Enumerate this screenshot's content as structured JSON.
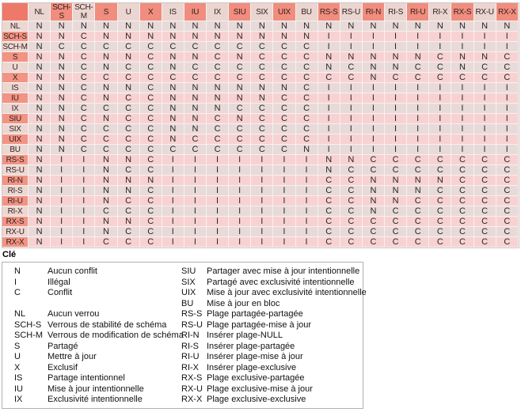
{
  "colors": {
    "corner": "#ef7968",
    "header_dark": "#f08d7e",
    "header_light": "#ead5d1",
    "row_header_dark": "#f29384",
    "row_header_light": "#ecd7d3",
    "cell_pink": "#f8d2d2",
    "cell_gray": "#e9dada",
    "grid_line": "#f7f0ee",
    "table_border": "#cfc5c2",
    "key_border": "#b4b0ae"
  },
  "matrix": {
    "corner_label": "",
    "columns": [
      "NL",
      "SCH-S",
      "SCH-M",
      "S",
      "U",
      "X",
      "IS",
      "IU",
      "IX",
      "SIU",
      "SIX",
      "UIX",
      "BU",
      "RS-S",
      "RS-U",
      "RI-N",
      "RI-S",
      "RI-U",
      "RI-X",
      "RX-S",
      "RX-U",
      "RX-X"
    ],
    "rows": [
      {
        "label": "NL",
        "values": [
          "N",
          "N",
          "N",
          "N",
          "N",
          "N",
          "N",
          "N",
          "N",
          "N",
          "N",
          "N",
          "N",
          "N",
          "N",
          "N",
          "N",
          "N",
          "N",
          "N",
          "N",
          "N"
        ]
      },
      {
        "label": "SCH-S",
        "values": [
          "N",
          "N",
          "C",
          "N",
          "N",
          "N",
          "N",
          "N",
          "N",
          "N",
          "N",
          "N",
          "N",
          "I",
          "I",
          "I",
          "I",
          "I",
          "I",
          "I",
          "I",
          "I"
        ]
      },
      {
        "label": "SCH-M",
        "values": [
          "N",
          "C",
          "C",
          "C",
          "C",
          "C",
          "C",
          "C",
          "C",
          "C",
          "C",
          "C",
          "C",
          "I",
          "I",
          "I",
          "I",
          "I",
          "I",
          "I",
          "I",
          "I"
        ]
      },
      {
        "label": "S",
        "values": [
          "N",
          "N",
          "C",
          "N",
          "N",
          "C",
          "N",
          "N",
          "C",
          "N",
          "C",
          "C",
          "C",
          "N",
          "N",
          "N",
          "N",
          "N",
          "C",
          "N",
          "N",
          "C"
        ]
      },
      {
        "label": "U",
        "values": [
          "N",
          "N",
          "C",
          "N",
          "C",
          "C",
          "N",
          "C",
          "C",
          "C",
          "C",
          "C",
          "C",
          "N",
          "C",
          "N",
          "N",
          "C",
          "C",
          "N",
          "C",
          "C"
        ]
      },
      {
        "label": "X",
        "values": [
          "N",
          "N",
          "C",
          "C",
          "C",
          "C",
          "C",
          "C",
          "C",
          "C",
          "C",
          "C",
          "C",
          "C",
          "C",
          "N",
          "C",
          "C",
          "C",
          "C",
          "C",
          "C"
        ]
      },
      {
        "label": "IS",
        "values": [
          "N",
          "N",
          "C",
          "N",
          "N",
          "C",
          "N",
          "N",
          "N",
          "N",
          "N",
          "N",
          "C",
          "I",
          "I",
          "I",
          "I",
          "I",
          "I",
          "I",
          "I",
          "I"
        ]
      },
      {
        "label": "IU",
        "values": [
          "N",
          "N",
          "C",
          "N",
          "C",
          "C",
          "N",
          "N",
          "N",
          "N",
          "N",
          "C",
          "C",
          "I",
          "I",
          "I",
          "I",
          "I",
          "I",
          "I",
          "I",
          "I"
        ]
      },
      {
        "label": "IX",
        "values": [
          "N",
          "N",
          "C",
          "C",
          "C",
          "C",
          "N",
          "N",
          "N",
          "C",
          "C",
          "C",
          "C",
          "I",
          "I",
          "I",
          "I",
          "I",
          "I",
          "I",
          "I",
          "I"
        ]
      },
      {
        "label": "SIU",
        "values": [
          "N",
          "N",
          "C",
          "N",
          "C",
          "C",
          "N",
          "N",
          "C",
          "N",
          "C",
          "C",
          "C",
          "I",
          "I",
          "I",
          "I",
          "I",
          "I",
          "I",
          "I",
          "I"
        ]
      },
      {
        "label": "SIX",
        "values": [
          "N",
          "N",
          "C",
          "C",
          "C",
          "C",
          "N",
          "N",
          "C",
          "C",
          "C",
          "C",
          "C",
          "I",
          "I",
          "I",
          "I",
          "I",
          "I",
          "I",
          "I",
          "I"
        ]
      },
      {
        "label": "UIX",
        "values": [
          "N",
          "N",
          "C",
          "C",
          "C",
          "C",
          "N",
          "C",
          "C",
          "C",
          "C",
          "C",
          "C",
          "I",
          "I",
          "I",
          "I",
          "I",
          "I",
          "I",
          "I",
          "I"
        ]
      },
      {
        "label": "BU",
        "values": [
          "N",
          "N",
          "C",
          "C",
          "C",
          "C",
          "C",
          "C",
          "C",
          "C",
          "C",
          "C",
          "N",
          "I",
          "I",
          "I",
          "I",
          "I",
          "I",
          "I",
          "I",
          "I"
        ]
      },
      {
        "label": "RS-S",
        "values": [
          "N",
          "I",
          "I",
          "N",
          "N",
          "C",
          "I",
          "I",
          "I",
          "I",
          "I",
          "I",
          "I",
          "N",
          "N",
          "C",
          "C",
          "C",
          "C",
          "C",
          "C",
          "C"
        ]
      },
      {
        "label": "RS-U",
        "values": [
          "N",
          "I",
          "I",
          "N",
          "C",
          "C",
          "I",
          "I",
          "I",
          "I",
          "I",
          "I",
          "I",
          "N",
          "C",
          "C",
          "C",
          "C",
          "C",
          "C",
          "C",
          "C"
        ]
      },
      {
        "label": "RI-N",
        "values": [
          "N",
          "I",
          "I",
          "N",
          "N",
          "N",
          "I",
          "I",
          "I",
          "I",
          "I",
          "I",
          "I",
          "C",
          "C",
          "N",
          "N",
          "N",
          "N",
          "C",
          "C",
          "C"
        ]
      },
      {
        "label": "RI-S",
        "values": [
          "N",
          "I",
          "I",
          "N",
          "N",
          "C",
          "I",
          "I",
          "I",
          "I",
          "I",
          "I",
          "I",
          "C",
          "C",
          "N",
          "N",
          "N",
          "C",
          "C",
          "C",
          "C"
        ]
      },
      {
        "label": "RI-U",
        "values": [
          "N",
          "I",
          "I",
          "N",
          "C",
          "C",
          "I",
          "I",
          "I",
          "I",
          "I",
          "I",
          "I",
          "C",
          "C",
          "N",
          "N",
          "C",
          "C",
          "C",
          "C",
          "C"
        ]
      },
      {
        "label": "RI-X",
        "values": [
          "N",
          "I",
          "I",
          "C",
          "C",
          "C",
          "I",
          "I",
          "I",
          "I",
          "I",
          "I",
          "I",
          "C",
          "C",
          "N",
          "C",
          "C",
          "C",
          "C",
          "C",
          "C"
        ]
      },
      {
        "label": "RX-S",
        "values": [
          "N",
          "I",
          "I",
          "N",
          "N",
          "C",
          "I",
          "I",
          "I",
          "I",
          "I",
          "I",
          "I",
          "C",
          "C",
          "C",
          "C",
          "C",
          "C",
          "C",
          "C",
          "C"
        ]
      },
      {
        "label": "RX-U",
        "values": [
          "N",
          "I",
          "I",
          "N",
          "C",
          "C",
          "I",
          "I",
          "I",
          "I",
          "I",
          "I",
          "I",
          "C",
          "C",
          "C",
          "C",
          "C",
          "C",
          "C",
          "C",
          "C"
        ]
      },
      {
        "label": "RX-X",
        "values": [
          "N",
          "I",
          "I",
          "C",
          "C",
          "C",
          "I",
          "I",
          "I",
          "I",
          "I",
          "I",
          "I",
          "C",
          "C",
          "C",
          "C",
          "C",
          "C",
          "C",
          "C",
          "C"
        ]
      }
    ]
  },
  "key": {
    "heading": "Clé",
    "lines": [
      {
        "lc": "N",
        "ld": "Aucun conflit",
        "rc": "SIU",
        "rd": "Partager avec mise à jour intentionnelle"
      },
      {
        "lc": "I",
        "ld": "Illégal",
        "rc": "SIX",
        "rd": "Partagé avec exclusivité intentionnelle"
      },
      {
        "lc": "C",
        "ld": "Conflit",
        "rc": "UIX",
        "rd": "Mise à jour avec exclusivité intentionnelle"
      },
      {
        "lc": "",
        "ld": "",
        "rc": "BU",
        "rd": "Mise à jour en bloc"
      },
      {
        "lc": "NL",
        "ld": "Aucun verrou",
        "rc": "RS-S",
        "rd": "Plage partagée-partagée"
      },
      {
        "lc": "SCH-S",
        "ld": "Verrous de stabilité de schéma",
        "rc": "RS-U",
        "rd": "Plage partagée-mise à jour"
      },
      {
        "lc": "SCH-M",
        "ld": "Verrous de modification de schéma",
        "rc": "RI-N",
        "rd": "Insérer plage-NULL"
      },
      {
        "lc": "S",
        "ld": "Partagé",
        "rc": "RI-S",
        "rd": "Insérer plage-partagée"
      },
      {
        "lc": "U",
        "ld": "Mettre à jour",
        "rc": "RI-U",
        "rd": "Insérer plage-mise à jour"
      },
      {
        "lc": "X",
        "ld": "Exclusif",
        "rc": "RI-X",
        "rd": "Insérer plage-exclusive"
      },
      {
        "lc": "IS",
        "ld": "Partage intentionnel",
        "rc": "RX-S",
        "rd": "Plage exclusive-partagée"
      },
      {
        "lc": "IU",
        "ld": "Mise à jour intentionnelle",
        "rc": "RX-U",
        "rd": "Plage exclusive-mise à jour"
      },
      {
        "lc": "IX",
        "ld": "Exclusivité intentionnelle",
        "rc": "RX-X",
        "rd": "Plage exclusive-exclusive"
      }
    ]
  }
}
